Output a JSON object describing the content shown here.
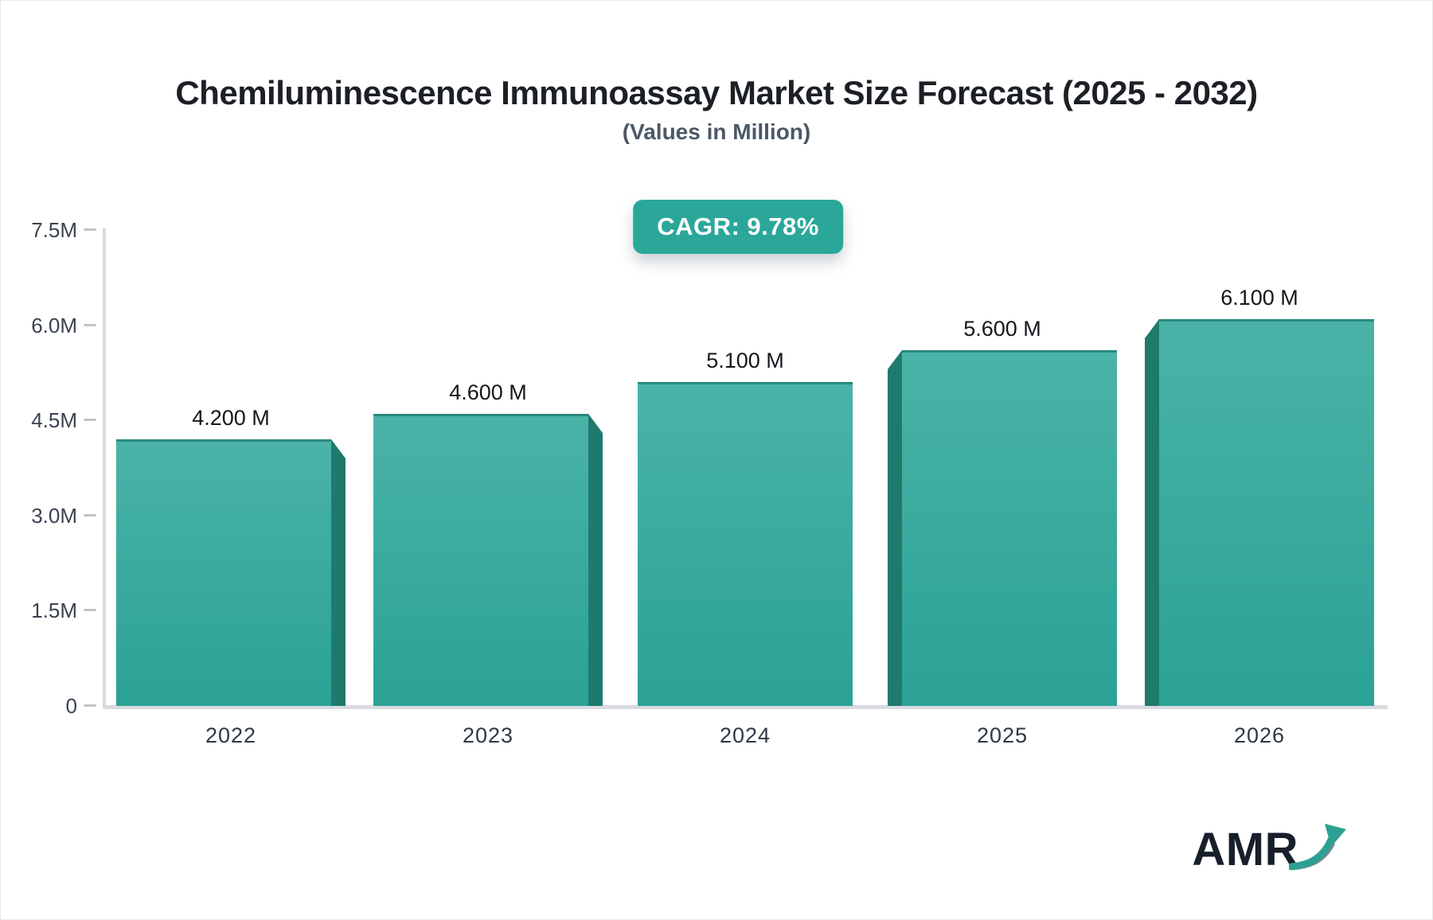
{
  "title": "Chemiluminescence Immunoassay Market Size Forecast (2025 - 2032)",
  "subtitle": "(Values in Million)",
  "cagr_badge": "CAGR: 9.78%",
  "logo": {
    "text": "AMR",
    "arrow_icon": "growth-arrow-icon"
  },
  "colors": {
    "accent_teal": "#2BA79A",
    "bar_top": "#4AB3A7",
    "bar_bottom": "#2AA294",
    "bar_side_dark": "#1F7A6E",
    "axis_gray": "#D8DBE0",
    "title_text": "#1C2026",
    "subtitle_text": "#4B5866",
    "label_text": "#14181D",
    "logo_navy": "#161F2A"
  },
  "chart_data": {
    "type": "bar",
    "title": "Chemiluminescence Immunoassay Market Size Forecast (2025 - 2032)",
    "subtitle": "(Values in Million)",
    "cagr": "9.78%",
    "categories": [
      "2022",
      "2023",
      "2024",
      "2025",
      "2026"
    ],
    "values": [
      4.2,
      4.6,
      5.1,
      5.6,
      6.1
    ],
    "value_labels": [
      "4.200 M",
      "4.600 M",
      "5.100 M",
      "5.600 M",
      "6.100 M"
    ],
    "xlabel": "",
    "ylabel": "",
    "ylim": [
      0,
      7.5
    ],
    "yticks": [
      "7.5M",
      "6.0M",
      "4.5M",
      "3.0M",
      "1.5M",
      "0"
    ],
    "ytick_values": [
      7.5,
      6.0,
      4.5,
      3.0,
      1.5,
      0
    ],
    "grid": false,
    "legend": "none",
    "bar_color_top": "#4AB3A7",
    "bar_color_bottom": "#2AA294",
    "bar_side_color": "#1F7A6E"
  }
}
